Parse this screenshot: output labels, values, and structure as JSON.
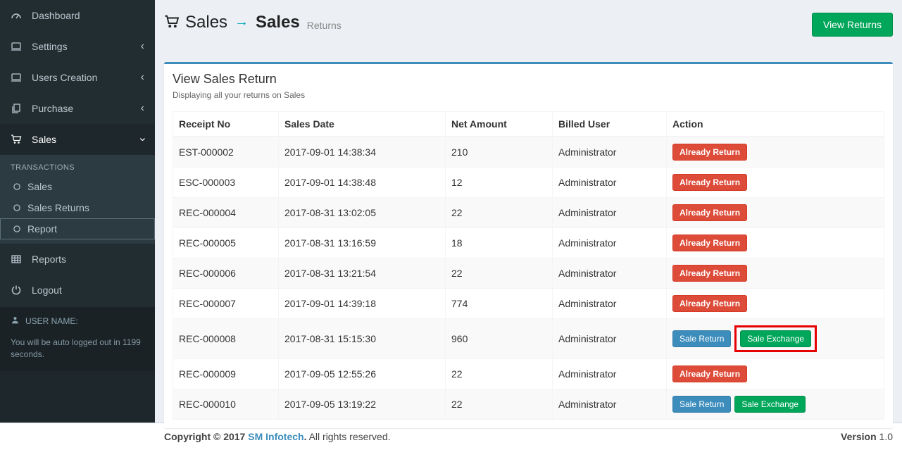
{
  "colors": {
    "topbar_accent": "#00b4bc",
    "card_accent": "#3c8dbc",
    "success_green": "#00a65a",
    "danger_red": "#dd4b39",
    "primary_blue": "#3c8dbc",
    "highlight_red": "#e60000",
    "sidebar_bg": "#222d32"
  },
  "sidebar": {
    "main_items": [
      {
        "label": "Dashboard",
        "icon": "dashboard-icon",
        "chevron": null,
        "active": false
      },
      {
        "label": "Settings",
        "icon": "monitor-icon",
        "chevron": "left",
        "active": false
      },
      {
        "label": "Users Creation",
        "icon": "monitor-icon",
        "chevron": "left",
        "active": false
      },
      {
        "label": "Purchase",
        "icon": "pages-icon",
        "chevron": "left",
        "active": false
      },
      {
        "label": "Sales",
        "icon": "cart-icon",
        "chevron": "down",
        "active": true
      }
    ],
    "section_label": "TRANSACTIONS",
    "sub_items": [
      {
        "label": "Sales",
        "icon": "circle-icon"
      },
      {
        "label": "Sales Returns",
        "icon": "circle-icon"
      },
      {
        "label": "Report",
        "icon": "circle-icon",
        "outlined": true
      }
    ],
    "bottom_items": [
      {
        "label": "Reports",
        "icon": "table-icon"
      },
      {
        "label": "Logout",
        "icon": "power-icon"
      }
    ],
    "user_label": "USER NAME:",
    "logout_notice": "You will be auto logged out in 1199 seconds."
  },
  "header": {
    "title_primary": "Sales",
    "title_secondary": "Sales",
    "title_small": "Returns",
    "button_label": "View Returns"
  },
  "panel": {
    "title": "View Sales Return",
    "subtitle": "Displaying all your returns on Sales",
    "action_labels": {
      "already_return": "Already Return",
      "sale_return": "Sale Return",
      "sale_exchange": "Sale Exchange"
    },
    "table": {
      "columns": [
        "Receipt No",
        "Sales Date",
        "Net Amount",
        "Billed User",
        "Action"
      ],
      "rows": [
        {
          "receipt_no": "EST-000002",
          "sales_date": "2017-09-01 14:38:34",
          "net_amount": "210",
          "billed_user": "Administrator",
          "actions": [
            "already_return"
          ]
        },
        {
          "receipt_no": "ESC-000003",
          "sales_date": "2017-09-01 14:38:48",
          "net_amount": "12",
          "billed_user": "Administrator",
          "actions": [
            "already_return"
          ]
        },
        {
          "receipt_no": "REC-000004",
          "sales_date": "2017-08-31 13:02:05",
          "net_amount": "22",
          "billed_user": "Administrator",
          "actions": [
            "already_return"
          ]
        },
        {
          "receipt_no": "REC-000005",
          "sales_date": "2017-08-31 13:16:59",
          "net_amount": "18",
          "billed_user": "Administrator",
          "actions": [
            "already_return"
          ]
        },
        {
          "receipt_no": "REC-000006",
          "sales_date": "2017-08-31 13:21:54",
          "net_amount": "22",
          "billed_user": "Administrator",
          "actions": [
            "already_return"
          ]
        },
        {
          "receipt_no": "REC-000007",
          "sales_date": "2017-09-01 14:39:18",
          "net_amount": "774",
          "billed_user": "Administrator",
          "actions": [
            "already_return"
          ]
        },
        {
          "receipt_no": "REC-000008",
          "sales_date": "2017-08-31 15:15:30",
          "net_amount": "960",
          "billed_user": "Administrator",
          "actions": [
            "sale_return",
            "sale_exchange"
          ],
          "highlight_exchange": true
        },
        {
          "receipt_no": "REC-000009",
          "sales_date": "2017-09-05 12:55:26",
          "net_amount": "22",
          "billed_user": "Administrator",
          "actions": [
            "already_return"
          ]
        },
        {
          "receipt_no": "REC-000010",
          "sales_date": "2017-09-05 13:19:22",
          "net_amount": "22",
          "billed_user": "Administrator",
          "actions": [
            "sale_return",
            "sale_exchange"
          ]
        }
      ]
    }
  },
  "footer": {
    "copyright_prefix": "Copyright © 2017 ",
    "brand": "SM Infotech",
    "copyright_dot": ".",
    "rights": " All rights reserved.",
    "version_label": "Version",
    "version_value": "1.0"
  }
}
